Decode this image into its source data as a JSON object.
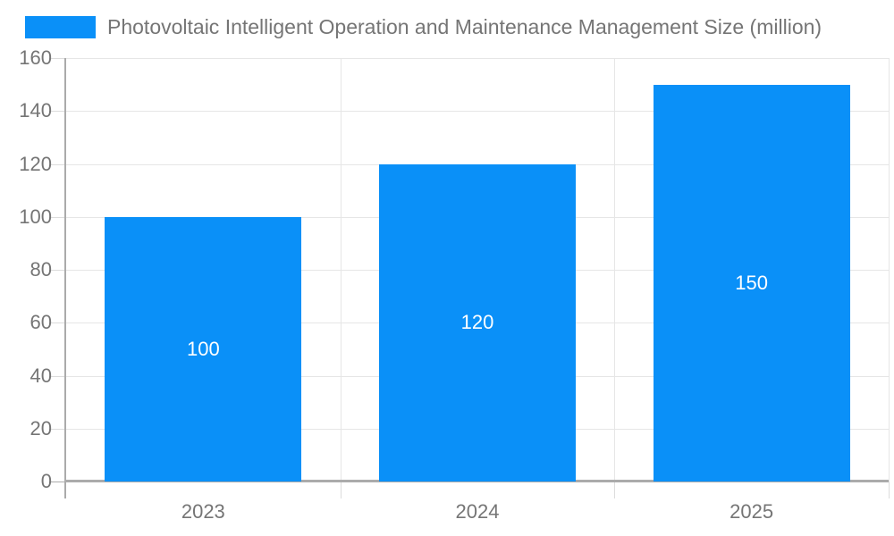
{
  "chart_data": {
    "type": "bar",
    "title": "Photovoltaic Intelligent Operation and Maintenance Management Size (million)",
    "categories": [
      "2023",
      "2024",
      "2025"
    ],
    "values": [
      100,
      120,
      150
    ],
    "xlabel": "",
    "ylabel": "",
    "ylim": [
      0,
      160
    ],
    "ytick_step": 20,
    "ytick_labels": [
      "0",
      "20",
      "40",
      "60",
      "80",
      "100",
      "120",
      "140",
      "160"
    ],
    "data_labels": [
      "100",
      "120",
      "150"
    ],
    "grid": true,
    "legend_position": "top-left",
    "colors": {
      "bar": "#0a90f8",
      "text": "#757575",
      "grid": "#e6e6e6",
      "tick": "#dcdcdc",
      "axis": "#ababab",
      "data_label": "#ffffff"
    }
  }
}
